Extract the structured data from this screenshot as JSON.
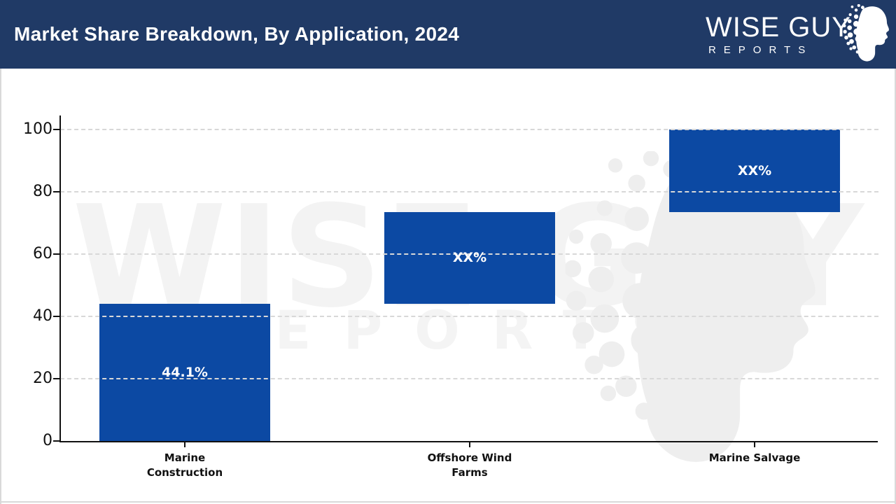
{
  "header": {
    "title": "Market Share Breakdown, By Application, 2024",
    "logo": {
      "wordmark": "WISE GUY",
      "subtext": "REPORTS"
    }
  },
  "watermark": {
    "wordmark": "WISE GUY",
    "subtext": "REPORTS"
  },
  "colors": {
    "header_bg": "#203a66",
    "bar": "#0c49a3",
    "gridline": "#d8d8d8",
    "axis": "#111111",
    "watermark_text": "#f3f3f3",
    "watermark_face": "#eeeeee",
    "frame_border": "#d9d9d9",
    "value_label_text": "#ffffff"
  },
  "chart_data": {
    "type": "bar",
    "subtype": "floating-segment-waterfall",
    "title": "Market Share Breakdown, By Application, 2024",
    "categories": [
      "Marine Construction",
      "Offshore Wind Farms",
      "Marine Salvage"
    ],
    "segments": [
      {
        "category": "Marine Construction",
        "category_lines": [
          "Marine",
          "Construction"
        ],
        "start": 0,
        "end": 44.1,
        "value_label": "44.1%"
      },
      {
        "category": "Offshore Wind Farms",
        "category_lines": [
          "Offshore Wind",
          "Farms"
        ],
        "start": 44.1,
        "end": 73.5,
        "value_label": "XX%"
      },
      {
        "category": "Marine Salvage",
        "category_lines": [
          "Marine Salvage"
        ],
        "start": 73.5,
        "end": 99.9,
        "value_label": "XX%"
      }
    ],
    "yticks": [
      0,
      20,
      40,
      60,
      80,
      100
    ],
    "ylim": [
      0,
      104.7
    ],
    "xlabel": "",
    "ylabel": "",
    "legend": null,
    "grid": "horizontal-dashed"
  }
}
